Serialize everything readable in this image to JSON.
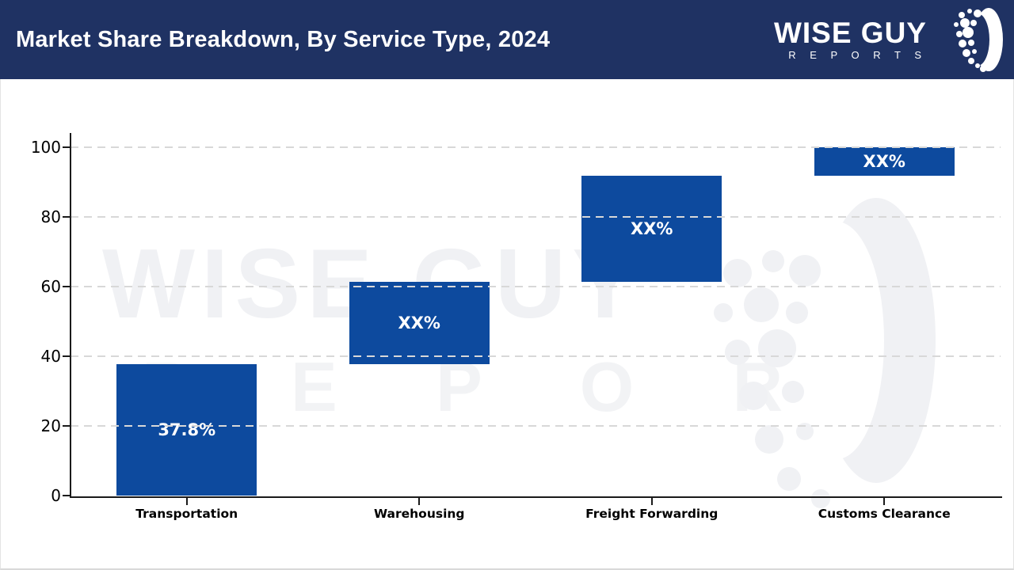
{
  "header": {
    "title": "Market Share Breakdown, By Service Type, 2024",
    "logo": {
      "line1": "WISE GUY",
      "line2": "R E P O R T S"
    }
  },
  "watermark": {
    "line1": "WISE GUY",
    "line2": "R E P O R T S"
  },
  "colors": {
    "header_bg": "#1f3263",
    "bar": "#0d4a9e",
    "grid": "#d8d8d8",
    "axis": "#1a1a1a",
    "bar_label": "#ffffff",
    "watermark": "#f0f1f4"
  },
  "chart_data": {
    "type": "bar",
    "subtype": "waterfall",
    "title": "Market Share Breakdown, By Service Type, 2024",
    "xlabel": "",
    "ylabel": "",
    "categories": [
      "Transportation",
      "Warehousing",
      "Freight Forwarding",
      "Customs Clearance"
    ],
    "segments": [
      {
        "start": 0,
        "end": 37.8,
        "label": "37.8%"
      },
      {
        "start": 37.8,
        "end": 61.4,
        "label": "XX%"
      },
      {
        "start": 61.4,
        "end": 91.8,
        "label": "XX%"
      },
      {
        "start": 91.8,
        "end": 100,
        "label": "XX%"
      }
    ],
    "yticks": [
      0,
      20,
      40,
      60,
      80,
      100
    ],
    "ylim": [
      0,
      104
    ],
    "grid": "horizontal dashed",
    "legend": "none"
  }
}
